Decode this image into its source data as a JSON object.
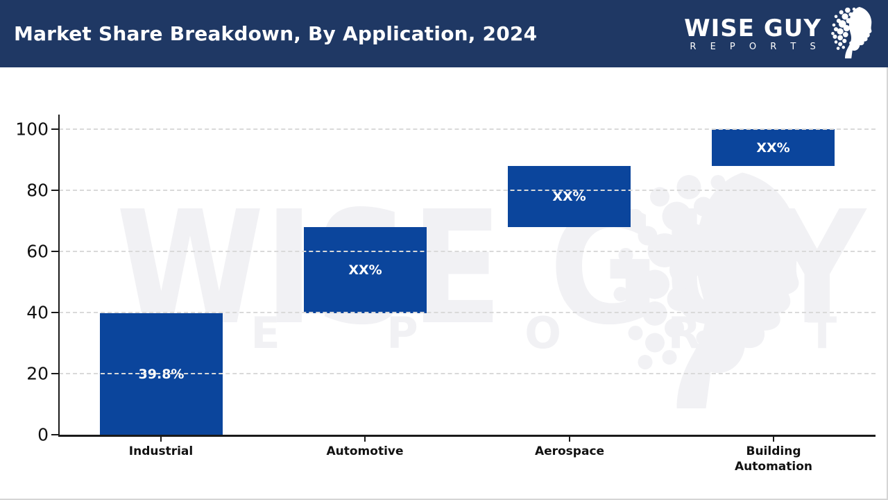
{
  "header": {
    "title": "Market Share Breakdown, By Application, 2024",
    "logo": {
      "line1": "WISE GUY",
      "line2": "R E P O R T S"
    }
  },
  "watermark": {
    "line1": "WISE GUY",
    "line2": "R E P O R T S"
  },
  "chart_data": {
    "type": "bar",
    "subtype": "floating-waterfall",
    "title": "Market Share Breakdown, By Application, 2024",
    "categories": [
      "Industrial",
      "Automotive",
      "Aerospace",
      "Building Automation"
    ],
    "category_display": [
      "Industrial",
      "Automotive",
      "Aerospace",
      "Building\nAutomation"
    ],
    "segments": [
      {
        "category": "Industrial",
        "start": 0,
        "end": 39.8,
        "label": "39.8%"
      },
      {
        "category": "Automotive",
        "start": 39.8,
        "end": 68,
        "label": "XX%"
      },
      {
        "category": "Aerospace",
        "start": 68,
        "end": 88,
        "label": "XX%"
      },
      {
        "category": "Building Automation",
        "start": 88,
        "end": 100,
        "label": "XX%"
      }
    ],
    "yticks": [
      0,
      20,
      40,
      60,
      80,
      100
    ],
    "ylim": [
      0,
      104.5
    ],
    "xlabel": "",
    "ylabel": "",
    "grid": "horizontal-dashed",
    "legend": "none",
    "colors": {
      "bar": "#0b459c",
      "bar_label": "#ffffff",
      "header_background": "#1f3864",
      "axis": "#1a1a1a",
      "gridline": "#d9d9d9"
    }
  }
}
